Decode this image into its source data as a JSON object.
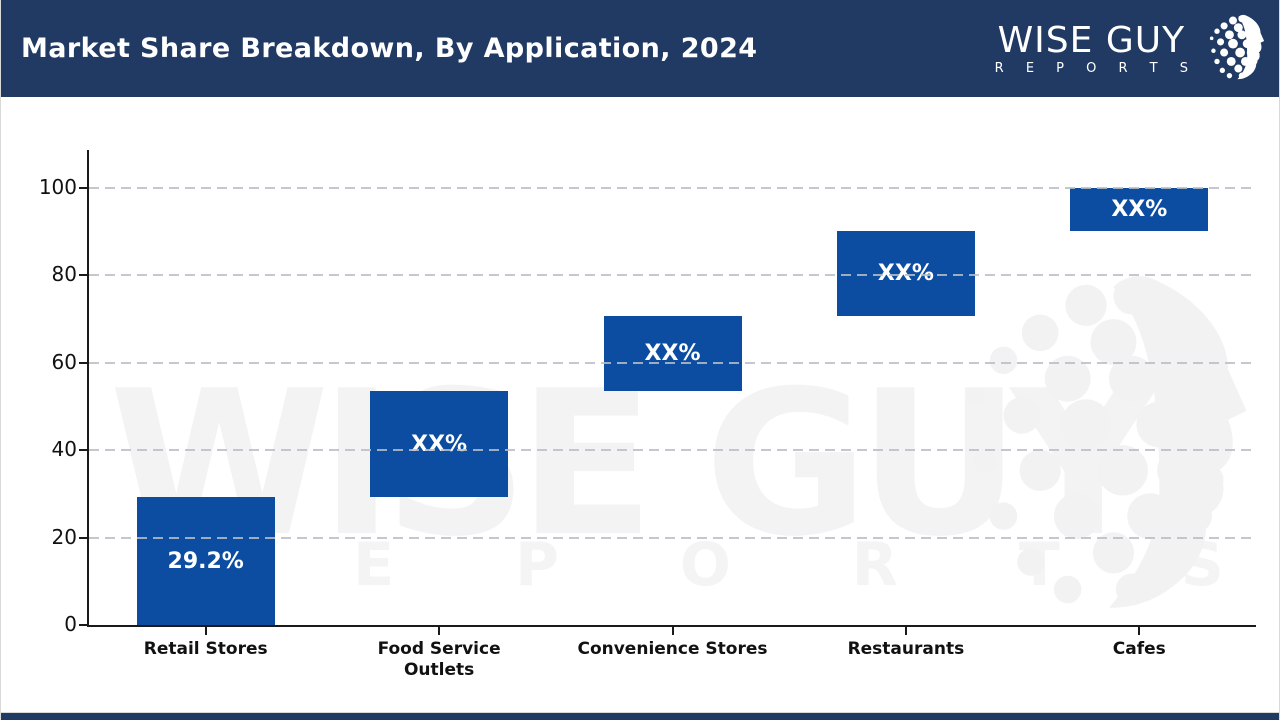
{
  "header": {
    "title": "Market Share Breakdown, By Application, 2024",
    "logo": {
      "name": "WISE GUY",
      "tagline": "R E P O R T S"
    }
  },
  "watermark": {
    "line1": "WISE GUY",
    "line2": "R E P O R T S"
  },
  "chart_data": {
    "type": "bar",
    "subtype": "waterfall",
    "title": "Market Share Breakdown, By Application, 2024",
    "categories": [
      "Retail Stores",
      "Food Service\nOutlets",
      "Convenience Stores",
      "Restaurants",
      "Cafes"
    ],
    "segments": [
      {
        "category": "Retail Stores",
        "label": "29.2%",
        "start": 0,
        "end": 29.2
      },
      {
        "category": "Food Service Outlets",
        "label": "XX%",
        "start": 29.2,
        "end": 53.5
      },
      {
        "category": "Convenience Stores",
        "label": "XX%",
        "start": 53.5,
        "end": 70.7
      },
      {
        "category": "Restaurants",
        "label": "XX%",
        "start": 70.7,
        "end": 90.0
      },
      {
        "category": "Cafes",
        "label": "XX%",
        "start": 90.0,
        "end": 100.0
      }
    ],
    "ylim": [
      0,
      100
    ],
    "yticks": [
      0,
      20,
      40,
      60,
      80,
      100
    ],
    "grid": {
      "axis": "y",
      "style": "dashed"
    },
    "legend": "none",
    "bar_color": "#0c4da2",
    "bar_label_color": "#ffffff"
  },
  "colors": {
    "header_bg": "#213a64",
    "footer_bg": "#213a64",
    "bar": "#0c4da2",
    "axis": "#1a1a1a",
    "gridline": "#d9d9d9",
    "watermark": "#f3f3f3",
    "title_text": "#ffffff"
  }
}
